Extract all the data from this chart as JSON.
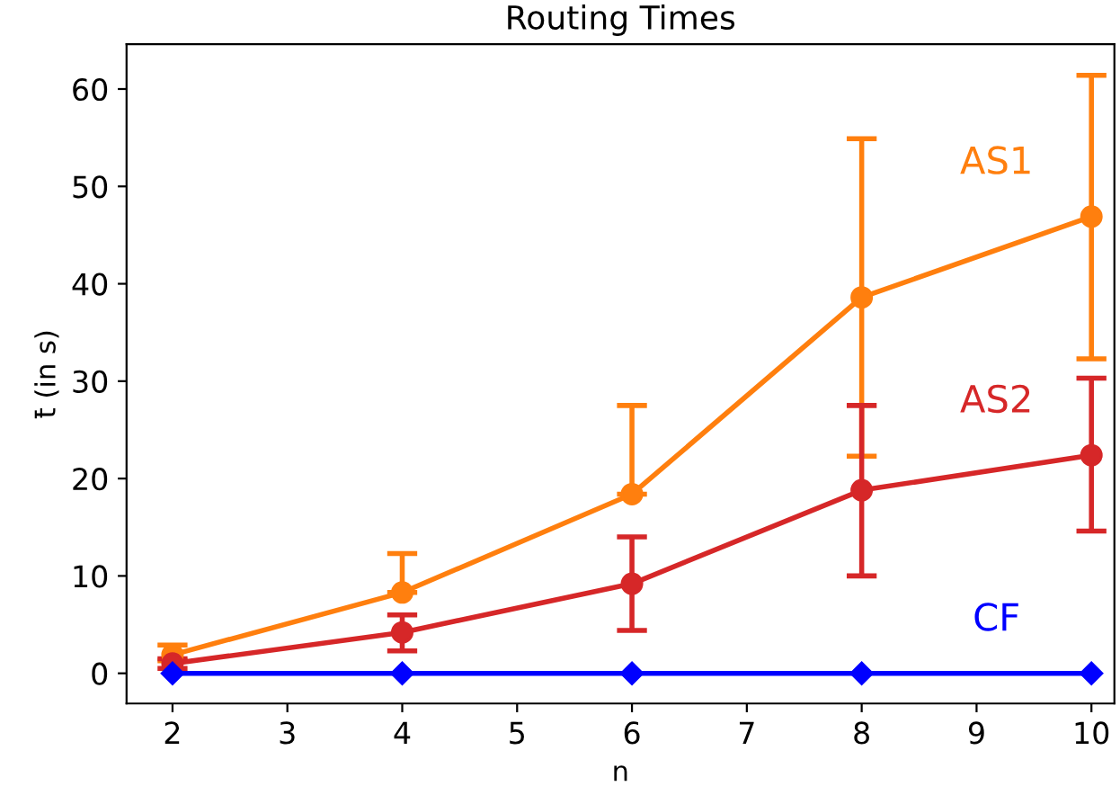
{
  "chart_data": {
    "type": "line",
    "title": "Routing Times",
    "xlabel": "n",
    "ylabel": "t̄ (in s)",
    "x": [
      2,
      4,
      6,
      8,
      10
    ],
    "series": [
      {
        "name": "AS1",
        "color": "#ff7f0e",
        "marker": "circle",
        "values": [
          1.9,
          8.3,
          18.4,
          38.6,
          46.9
        ],
        "errors": [
          [
            1.3,
            2.9
          ],
          [
            8.3,
            12.3
          ],
          [
            18.4,
            27.5
          ],
          [
            22.3,
            54.9
          ],
          [
            32.3,
            61.4
          ]
        ]
      },
      {
        "name": "AS2",
        "color": "#d62728",
        "marker": "circle",
        "values": [
          1.0,
          4.2,
          9.2,
          18.8,
          22.4
        ],
        "errors": [
          [
            0.5,
            1.5
          ],
          [
            2.3,
            6.0
          ],
          [
            4.4,
            14.0
          ],
          [
            10.0,
            27.5
          ],
          [
            14.6,
            30.3
          ]
        ]
      },
      {
        "name": "CF",
        "color": "#0000ff",
        "marker": "diamond",
        "values": [
          0,
          0,
          0,
          0,
          0
        ]
      }
    ],
    "xlim": [
      1.6,
      10.2
    ],
    "ylim": [
      -3.1,
      64.6
    ],
    "xticks": [
      2,
      3,
      4,
      5,
      6,
      7,
      8,
      9,
      10
    ],
    "yticks": [
      0,
      10,
      20,
      30,
      40,
      50,
      60
    ],
    "grid": false,
    "legend": false
  }
}
